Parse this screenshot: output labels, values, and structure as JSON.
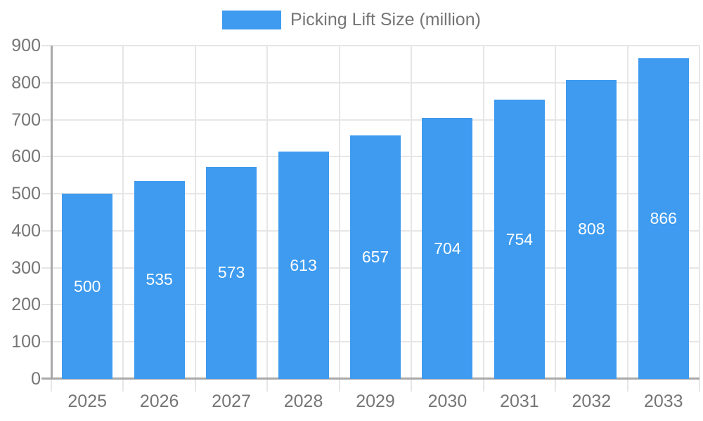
{
  "chart_data": {
    "type": "bar",
    "title": "Picking Lift Size (million)",
    "categories": [
      "2025",
      "2026",
      "2027",
      "2028",
      "2029",
      "2030",
      "2031",
      "2032",
      "2033"
    ],
    "values": [
      500,
      535,
      573,
      613,
      657,
      704,
      754,
      808,
      866
    ],
    "xlabel": "",
    "ylabel": "",
    "ylim": [
      0,
      900
    ],
    "ytick_step": 100,
    "grid": true,
    "legend_position": "top-center",
    "value_labels": "inside-center"
  },
  "colors": {
    "bar": "#3e9bef",
    "grid": "#e6e6e6",
    "axis": "#a8a8a8",
    "tick_text": "#757575",
    "legend_text": "#757575",
    "value_label_text": "#ffffff",
    "background": "#ffffff"
  }
}
